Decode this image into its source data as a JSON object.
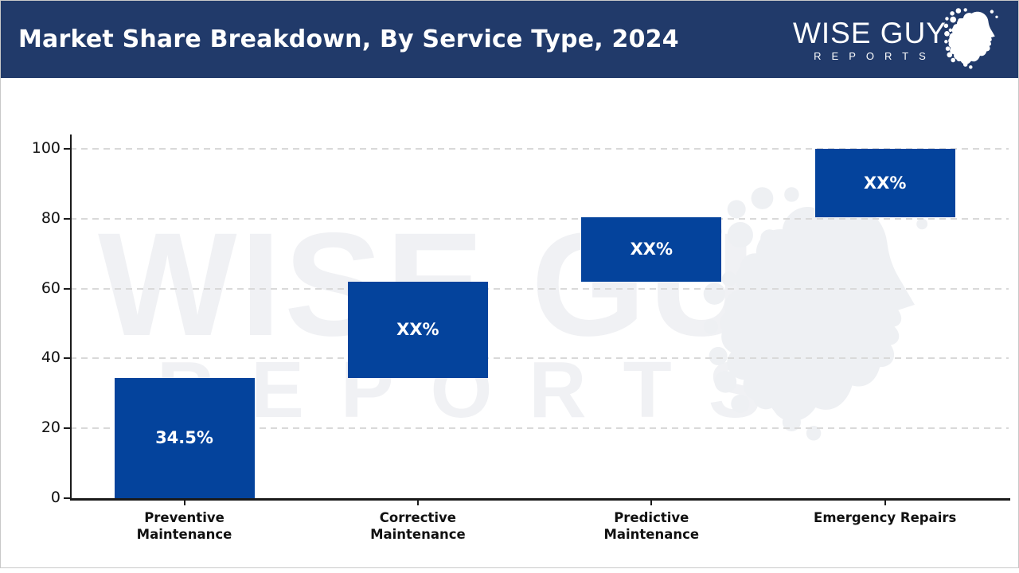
{
  "header": {
    "title": "Market Share Breakdown, By Service Type, 2024",
    "logo": {
      "line1": "WISE GUY",
      "line2": "REPORTS"
    }
  },
  "watermark": {
    "line1": "WISE GUY",
    "line2": "REPORTS"
  },
  "colors": {
    "header_bg": "#213a6a",
    "bar": "#04439c",
    "bar_value_label": "#ffffff",
    "axis": "#1a1a1a",
    "gridline": "#d9d9d9",
    "tick_label": "#111111",
    "watermark": "#f0f1f4"
  },
  "chart_data": {
    "type": "bar",
    "subtype": "waterfall",
    "title": "Market Share Breakdown, By Service Type, 2024",
    "xlabel": "",
    "ylabel": "",
    "ylim": [
      0,
      100
    ],
    "yticks": [
      0,
      20,
      40,
      60,
      80,
      100
    ],
    "grid": "horizontal dashed",
    "legend": "none",
    "categories": [
      "Preventive\nMaintenance",
      "Corrective\nMaintenance",
      "Predictive\nMaintenance",
      "Emergency Repairs"
    ],
    "segments": [
      {
        "category": "Preventive Maintenance",
        "start": 0,
        "end": 34.5,
        "label": "34.5%"
      },
      {
        "category": "Corrective Maintenance",
        "start": 34.5,
        "end": 62,
        "label": "XX%"
      },
      {
        "category": "Predictive Maintenance",
        "start": 62,
        "end": 80.5,
        "label": "XX%"
      },
      {
        "category": "Emergency Repairs",
        "start": 80.5,
        "end": 100,
        "label": "XX%"
      }
    ]
  }
}
